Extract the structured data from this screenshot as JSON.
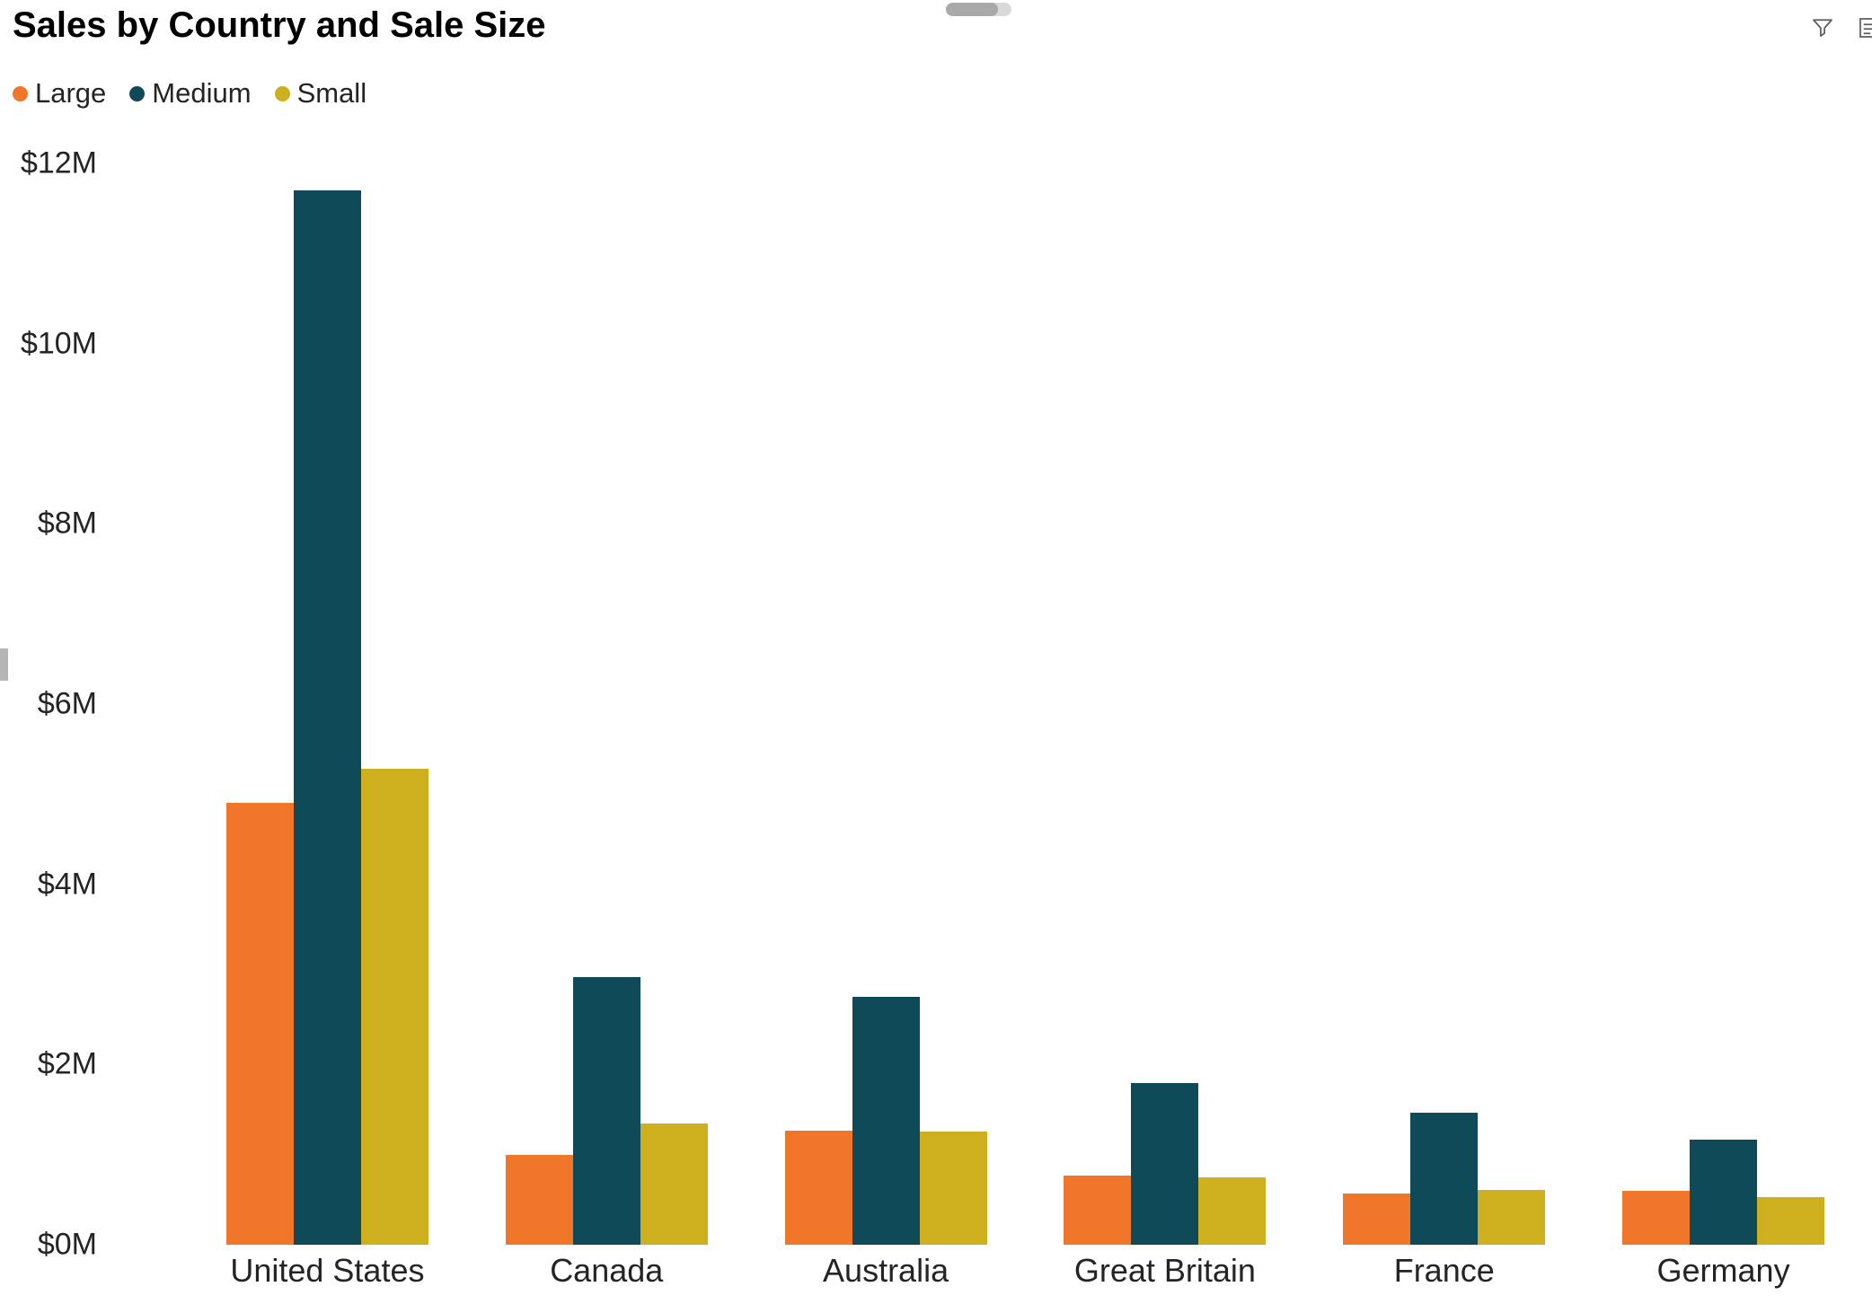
{
  "header": {
    "title": "Sales by Country and Sale Size"
  },
  "legend": {
    "items": [
      {
        "label": "Large",
        "color": "#F0762A"
      },
      {
        "label": "Medium",
        "color": "#0E4A57"
      },
      {
        "label": "Small",
        "color": "#CEB01F"
      }
    ]
  },
  "chart_data": {
    "type": "bar",
    "title": "Sales by Country and Sale Size",
    "categories": [
      "United States",
      "Canada",
      "Australia",
      "Great Britain",
      "France",
      "Germany"
    ],
    "series": [
      {
        "name": "Large",
        "color": "#F0762A",
        "values": [
          4.9,
          1.0,
          1.27,
          0.77,
          0.57,
          0.6
        ]
      },
      {
        "name": "Medium",
        "color": "#0E4A57",
        "values": [
          11.7,
          2.97,
          2.75,
          1.79,
          1.47,
          1.17
        ]
      },
      {
        "name": "Small",
        "color": "#CEB01F",
        "values": [
          5.28,
          1.35,
          1.26,
          0.75,
          0.61,
          0.53
        ]
      }
    ],
    "xlabel": "",
    "ylabel": "",
    "ylim": [
      0,
      12
    ],
    "y_ticks": [
      {
        "label": "$0M",
        "value": 0
      },
      {
        "label": "$2M",
        "value": 2
      },
      {
        "label": "$4M",
        "value": 4
      },
      {
        "label": "$6M",
        "value": 6
      },
      {
        "label": "$8M",
        "value": 8
      },
      {
        "label": "$10M",
        "value": 10
      },
      {
        "label": "$12M",
        "value": 12
      }
    ],
    "grid": false,
    "legend_position": "top-left",
    "value_unit": "USD millions"
  }
}
